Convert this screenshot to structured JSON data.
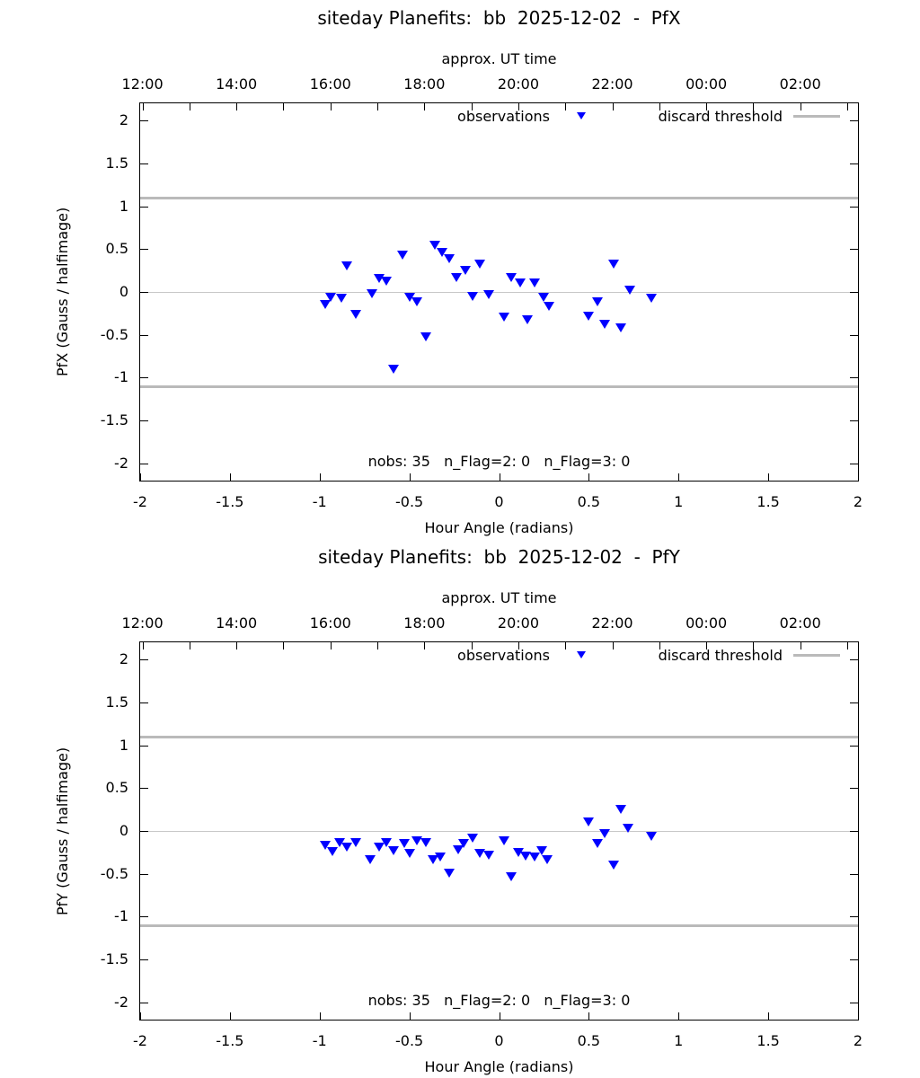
{
  "page": {
    "background": "#ffffff"
  },
  "chart_data": [
    {
      "type": "scatter",
      "title": "siteday Planefits:  bb  2025-12-02  -  PfX",
      "x2_label": "approx. UT time",
      "xlabel": "Hour Angle (radians)",
      "ylabel": "PfX (Gauss / halfimage)",
      "xlim": [
        -2,
        2
      ],
      "ylim": [
        -2.2,
        2.2
      ],
      "x_ticks": [
        -2,
        -1.5,
        -1,
        -0.5,
        0,
        0.5,
        1,
        1.5,
        2
      ],
      "x_tick_labels": [
        "-2",
        "-1.5",
        "-1",
        "-0.5",
        "0",
        "0.5",
        "1",
        "1.5",
        "2"
      ],
      "y_ticks": [
        2,
        1.5,
        1,
        0.5,
        0,
        -0.5,
        -1,
        -1.5,
        -2
      ],
      "y_tick_labels": [
        "2",
        "1.5",
        "1",
        "0.5",
        "0",
        "-0.5",
        "-1",
        "-1.5",
        "-2"
      ],
      "x2_ticks": {
        "start_hour_angle": -1.987,
        "radians_per_hour": 0.2618,
        "count": 16,
        "label_every": 2,
        "labels": [
          "12:00",
          "14:00",
          "16:00",
          "18:00",
          "20:00",
          "22:00",
          "00:00",
          "02:00"
        ]
      },
      "zero_line": {
        "value": 0,
        "color": "#c8c8c8"
      },
      "discard_threshold": {
        "values": [
          1.1,
          -1.1
        ],
        "color": "#bababa"
      },
      "legend": {
        "position": "top-inside",
        "entries": [
          {
            "label": "observations",
            "sample": "point",
            "color": "#0000ff"
          },
          {
            "label": "discard threshold",
            "sample": "line",
            "color": "#bababa"
          }
        ]
      },
      "marker": {
        "shape": "triangle-down",
        "color": "#0000ff"
      },
      "annotation": "nobs: 35   n_Flag=2: 0   n_Flag=3: 0",
      "stats": {
        "nobs": 35,
        "n_flag_2": 0,
        "n_flag_3": 0
      },
      "points": [
        [
          -0.97,
          -0.15
        ],
        [
          -0.94,
          -0.06
        ],
        [
          -0.88,
          -0.07
        ],
        [
          -0.85,
          0.3
        ],
        [
          -0.8,
          -0.26
        ],
        [
          -0.71,
          -0.02
        ],
        [
          -0.67,
          0.16
        ],
        [
          -0.63,
          0.13
        ],
        [
          -0.59,
          -0.9
        ],
        [
          -0.54,
          0.43
        ],
        [
          -0.5,
          -0.06
        ],
        [
          -0.46,
          -0.11
        ],
        [
          -0.41,
          -0.52
        ],
        [
          -0.36,
          0.54
        ],
        [
          -0.32,
          0.46
        ],
        [
          -0.28,
          0.39
        ],
        [
          -0.24,
          0.17
        ],
        [
          -0.19,
          0.25
        ],
        [
          -0.15,
          -0.05
        ],
        [
          -0.11,
          0.32
        ],
        [
          -0.06,
          -0.03
        ],
        [
          0.03,
          -0.29
        ],
        [
          0.07,
          0.17
        ],
        [
          0.12,
          0.11
        ],
        [
          0.16,
          -0.32
        ],
        [
          0.2,
          0.1
        ],
        [
          0.25,
          -0.06
        ],
        [
          0.28,
          -0.17
        ],
        [
          0.5,
          -0.28
        ],
        [
          0.55,
          -0.12
        ],
        [
          0.59,
          -0.38
        ],
        [
          0.64,
          0.32
        ],
        [
          0.68,
          -0.42
        ],
        [
          0.73,
          0.02
        ],
        [
          0.85,
          -0.07
        ]
      ]
    },
    {
      "type": "scatter",
      "title": "siteday Planefits:  bb  2025-12-02  -  PfY",
      "x2_label": "approx. UT time",
      "xlabel": "Hour Angle (radians)",
      "ylabel": "PfY (Gauss / halfimage)",
      "xlim": [
        -2,
        2
      ],
      "ylim": [
        -2.2,
        2.2
      ],
      "x_ticks": [
        -2,
        -1.5,
        -1,
        -0.5,
        0,
        0.5,
        1,
        1.5,
        2
      ],
      "x_tick_labels": [
        "-2",
        "-1.5",
        "-1",
        "-0.5",
        "0",
        "0.5",
        "1",
        "1.5",
        "2"
      ],
      "y_ticks": [
        2,
        1.5,
        1,
        0.5,
        0,
        -0.5,
        -1,
        -1.5,
        -2
      ],
      "y_tick_labels": [
        "2",
        "1.5",
        "1",
        "0.5",
        "0",
        "-0.5",
        "-1",
        "-1.5",
        "-2"
      ],
      "x2_ticks": {
        "start_hour_angle": -1.987,
        "radians_per_hour": 0.2618,
        "count": 16,
        "label_every": 2,
        "labels": [
          "12:00",
          "14:00",
          "16:00",
          "18:00",
          "20:00",
          "22:00",
          "00:00",
          "02:00"
        ]
      },
      "zero_line": {
        "value": 0,
        "color": "#c8c8c8"
      },
      "discard_threshold": {
        "values": [
          1.1,
          -1.1
        ],
        "color": "#bababa"
      },
      "legend": {
        "position": "top-inside",
        "entries": [
          {
            "label": "observations",
            "sample": "point",
            "color": "#0000ff"
          },
          {
            "label": "discard threshold",
            "sample": "line",
            "color": "#bababa"
          }
        ]
      },
      "marker": {
        "shape": "triangle-down",
        "color": "#0000ff"
      },
      "annotation": "nobs: 35   n_Flag=2: 0   n_Flag=3: 0",
      "stats": {
        "nobs": 35,
        "n_flag_2": 0,
        "n_flag_3": 0
      },
      "points": [
        [
          -0.97,
          -0.17
        ],
        [
          -0.93,
          -0.24
        ],
        [
          -0.89,
          -0.14
        ],
        [
          -0.85,
          -0.19
        ],
        [
          -0.8,
          -0.14
        ],
        [
          -0.72,
          -0.33
        ],
        [
          -0.67,
          -0.19
        ],
        [
          -0.63,
          -0.14
        ],
        [
          -0.59,
          -0.23
        ],
        [
          -0.53,
          -0.15
        ],
        [
          -0.5,
          -0.26
        ],
        [
          -0.46,
          -0.12
        ],
        [
          -0.41,
          -0.14
        ],
        [
          -0.37,
          -0.33
        ],
        [
          -0.33,
          -0.3
        ],
        [
          -0.28,
          -0.49
        ],
        [
          -0.23,
          -0.22
        ],
        [
          -0.2,
          -0.15
        ],
        [
          -0.15,
          -0.08
        ],
        [
          -0.11,
          -0.26
        ],
        [
          -0.06,
          -0.28
        ],
        [
          0.03,
          -0.12
        ],
        [
          0.07,
          -0.53
        ],
        [
          0.11,
          -0.25
        ],
        [
          0.15,
          -0.29
        ],
        [
          0.2,
          -0.3
        ],
        [
          0.24,
          -0.23
        ],
        [
          0.27,
          -0.33
        ],
        [
          0.5,
          0.11
        ],
        [
          0.55,
          -0.15
        ],
        [
          0.59,
          -0.03
        ],
        [
          0.64,
          -0.4
        ],
        [
          0.68,
          0.25
        ],
        [
          0.72,
          0.03
        ],
        [
          0.85,
          -0.06
        ]
      ]
    }
  ]
}
